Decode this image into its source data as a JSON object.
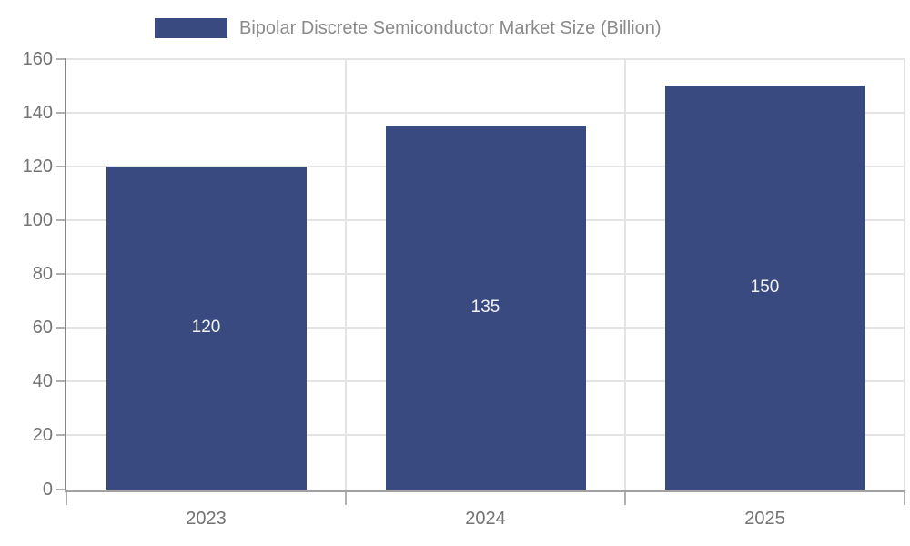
{
  "chart_data": {
    "type": "bar",
    "title": "Bipolar Discrete Semiconductor Market Size (Billion)",
    "categories": [
      "2023",
      "2024",
      "2025"
    ],
    "values": [
      120,
      135,
      150
    ],
    "bar_value_labels": [
      "120",
      "135",
      "150"
    ],
    "xlabel": "",
    "ylabel": "",
    "ylim": [
      0,
      160
    ],
    "ytick_step": 20,
    "ytick_labels": [
      "0",
      "20",
      "40",
      "60",
      "80",
      "100",
      "120",
      "140",
      "160"
    ],
    "grid": true,
    "legend_position": "top-center",
    "colors": {
      "bar": "#394a81",
      "grid": "#e4e4e4",
      "spine_left": "#878787",
      "spine_bottom": "#a2a2a2",
      "tick_mark": "#b0b0b0",
      "tick_label": "#737373",
      "bar_label": "#f2f2f2",
      "legend_text": "#8a8a8a"
    }
  }
}
